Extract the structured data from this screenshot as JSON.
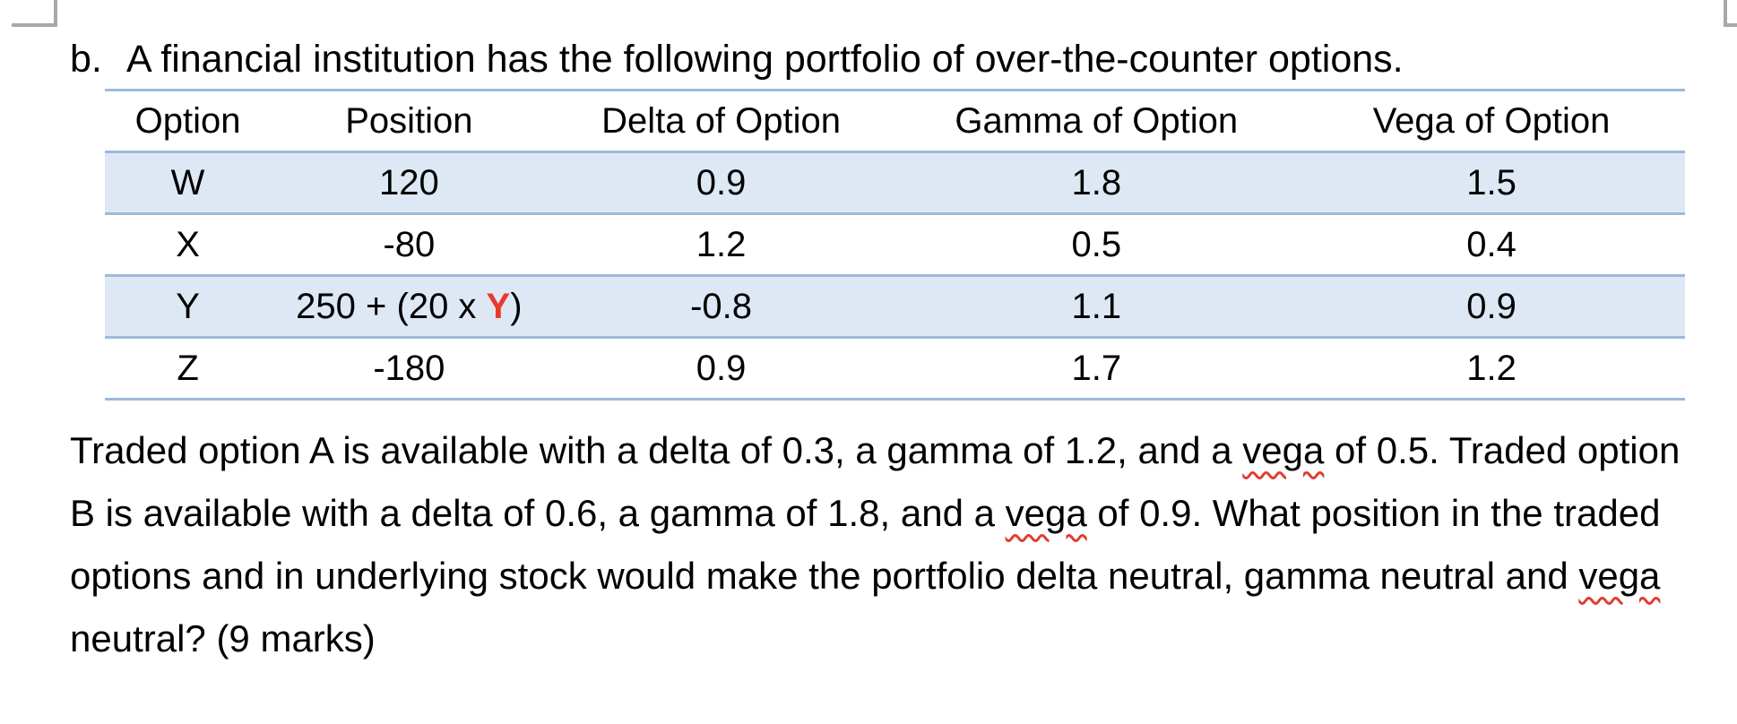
{
  "title": {
    "marker": "b.",
    "text": "A financial institution has the following portfolio of over-the-counter options."
  },
  "table": {
    "headers": [
      "Option",
      "Position",
      "Delta of Option",
      "Gamma of Option",
      "Vega of Option"
    ],
    "rows": [
      {
        "option": "W",
        "position": "120",
        "delta": "0.9",
        "gamma": "1.8",
        "vega": "1.5"
      },
      {
        "option": "X",
        "position": "-80",
        "delta": "1.2",
        "gamma": "0.5",
        "vega": "0.4"
      },
      {
        "option": "Y",
        "position_prefix": "250 + (20 x ",
        "position_highlight": "Y",
        "position_suffix": ")",
        "delta": "-0.8",
        "gamma": "1.1",
        "vega": "0.9"
      },
      {
        "option": "Z",
        "position": "-180",
        "delta": "0.9",
        "gamma": "1.7",
        "vega": "1.2"
      }
    ]
  },
  "paragraph": {
    "lines": [
      {
        "pre": "Traded option A is available with a delta of 0.3, a gamma of 1.2, and a ",
        "misspelled": "vega",
        "post": " of 0.5. Traded option"
      },
      {
        "pre": "B is available with a delta of 0.6, a gamma of 1.8, and a ",
        "misspelled": "vega",
        "post": " of 0.9. What position in the traded"
      },
      {
        "pre": "options and in underlying stock would make the portfolio delta neutral, gamma neutral and ",
        "misspelled": "vega",
        "post": ""
      },
      {
        "pre": "neutral? (9 marks)",
        "misspelled": "",
        "post": ""
      }
    ]
  },
  "colors": {
    "table_border_blue": "#9db9da",
    "row_shading_blue": "#dee8f4",
    "highlight_red": "#e8392b",
    "squiggle_red": "#e03c31",
    "corner_mark_gray": "#a8a8a8"
  }
}
